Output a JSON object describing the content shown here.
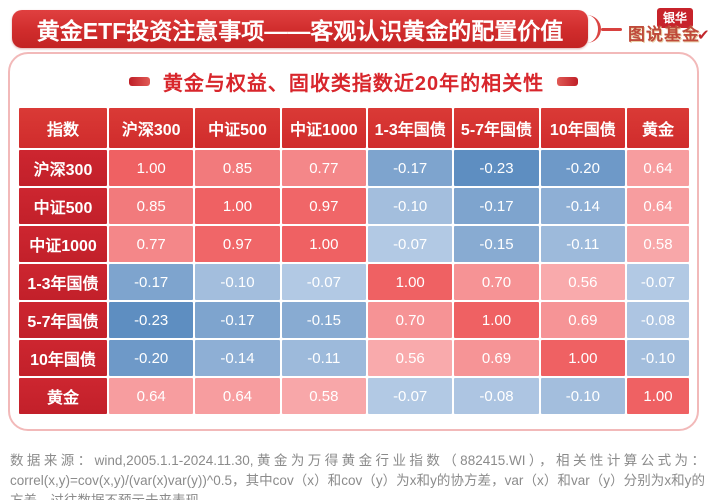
{
  "header": {
    "title": "黄金ETF投资注意事项——客观认识黄金的配置价值",
    "logo_top": "银华",
    "logo_bottom": "图说基金"
  },
  "icons": {
    "checkmark": "✔"
  },
  "subtitle": "黄金与权益、固收类指数近20年的相关性",
  "chart_data": {
    "type": "heatmap",
    "title": "黄金与权益、固收类指数近20年的相关性",
    "corner_label": "指数",
    "columns": [
      "沪深300",
      "中证500",
      "中证1000",
      "1-3年国债",
      "5-7年国债",
      "10年国债",
      "黄金"
    ],
    "rows": [
      "沪深300",
      "中证500",
      "中证1000",
      "1-3年国债",
      "5-7年国债",
      "10年国债",
      "黄金"
    ],
    "values": [
      [
        1.0,
        0.85,
        0.77,
        -0.17,
        -0.23,
        -0.2,
        0.64
      ],
      [
        0.85,
        1.0,
        0.97,
        -0.1,
        -0.17,
        -0.14,
        0.64
      ],
      [
        0.77,
        0.97,
        1.0,
        -0.07,
        -0.15,
        -0.11,
        0.58
      ],
      [
        -0.17,
        -0.1,
        -0.07,
        1.0,
        0.7,
        0.56,
        -0.07
      ],
      [
        -0.23,
        -0.17,
        -0.15,
        0.7,
        1.0,
        0.69,
        -0.08
      ],
      [
        -0.2,
        -0.14,
        -0.11,
        0.56,
        0.69,
        1.0,
        -0.1
      ],
      [
        0.64,
        0.64,
        0.58,
        -0.07,
        -0.08,
        -0.1,
        1.0
      ]
    ],
    "value_decimals": 2,
    "colors": {
      "header_red": "#d43030",
      "positive_light": "#fab4b6",
      "positive_dark": "#ef6163",
      "negative_light": "#bdd0e8",
      "negative_dark": "#5e8ec1"
    }
  },
  "footnote": "数据来源：wind,2005.1.1-2024.11.30,黄金为万得黄金行业指数（882415.WI），相关性计算公式为：correl(x,y)=cov(x,y)/(var(x)var(y))^0.5，其中cov（x）和cov（y）为x和y的协方差，var（x）和var（y）分别为x和y的方差。过往数据不预示未来表现。"
}
